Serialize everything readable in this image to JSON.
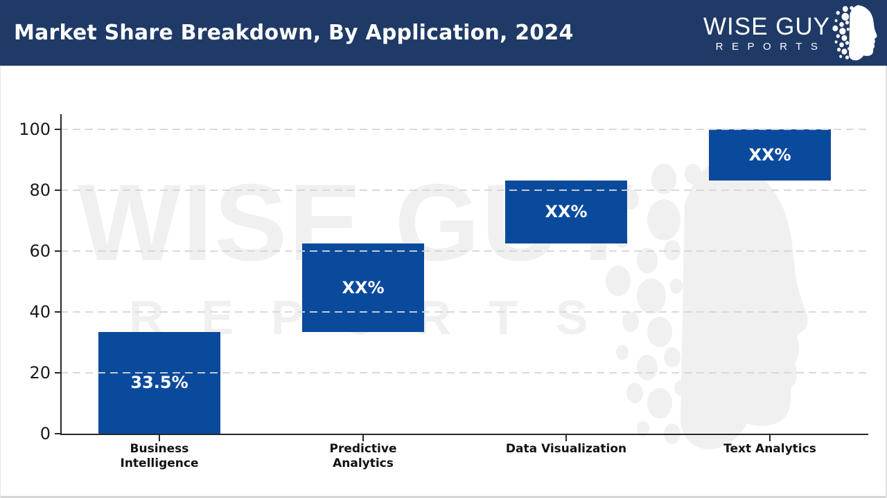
{
  "header": {
    "title": "Market Share Breakdown, By Application, 2024",
    "background_color": "#1f3a66",
    "logo": {
      "wordmark": "WISE GUY",
      "subtext": "REPORTS",
      "icon": "dotted-head-profile-icon"
    }
  },
  "watermark": {
    "wordmark": "WISE GUY",
    "subtext": "REPORTS",
    "icon": "dotted-head-profile-icon",
    "color": "#f0f0f0"
  },
  "chart_data": {
    "type": "bar",
    "subtype": "waterfall-floating-bars",
    "title": "Market Share Breakdown, By Application, 2024",
    "categories": [
      "Business Intelligence",
      "Predictive Analytics",
      "Data Visualization",
      "Text Analytics"
    ],
    "bars": [
      {
        "label_lines": [
          "Business",
          "Intelligence"
        ],
        "start": 0,
        "end": 33.5,
        "value_label": "33.5%"
      },
      {
        "label_lines": [
          "Predictive",
          "Analytics"
        ],
        "start": 33.5,
        "end": 62.5,
        "value_label": "XX%"
      },
      {
        "label_lines": [
          "Data Visualization"
        ],
        "start": 62.5,
        "end": 83.2,
        "value_label": "XX%"
      },
      {
        "label_lines": [
          "Text Analytics"
        ],
        "start": 83.2,
        "end": 100,
        "value_label": "XX%"
      }
    ],
    "xlabel": "",
    "ylabel": "",
    "ylim": [
      0,
      100
    ],
    "yticks": [
      0,
      20,
      40,
      60,
      80,
      100
    ],
    "grid": {
      "horizontal": true,
      "style": "dashed",
      "color": "#d9d9d9",
      "drawn_above_bars": true
    },
    "bar_color": "#0a4a9c",
    "value_label_color": "#ffffff",
    "legend": "none"
  }
}
